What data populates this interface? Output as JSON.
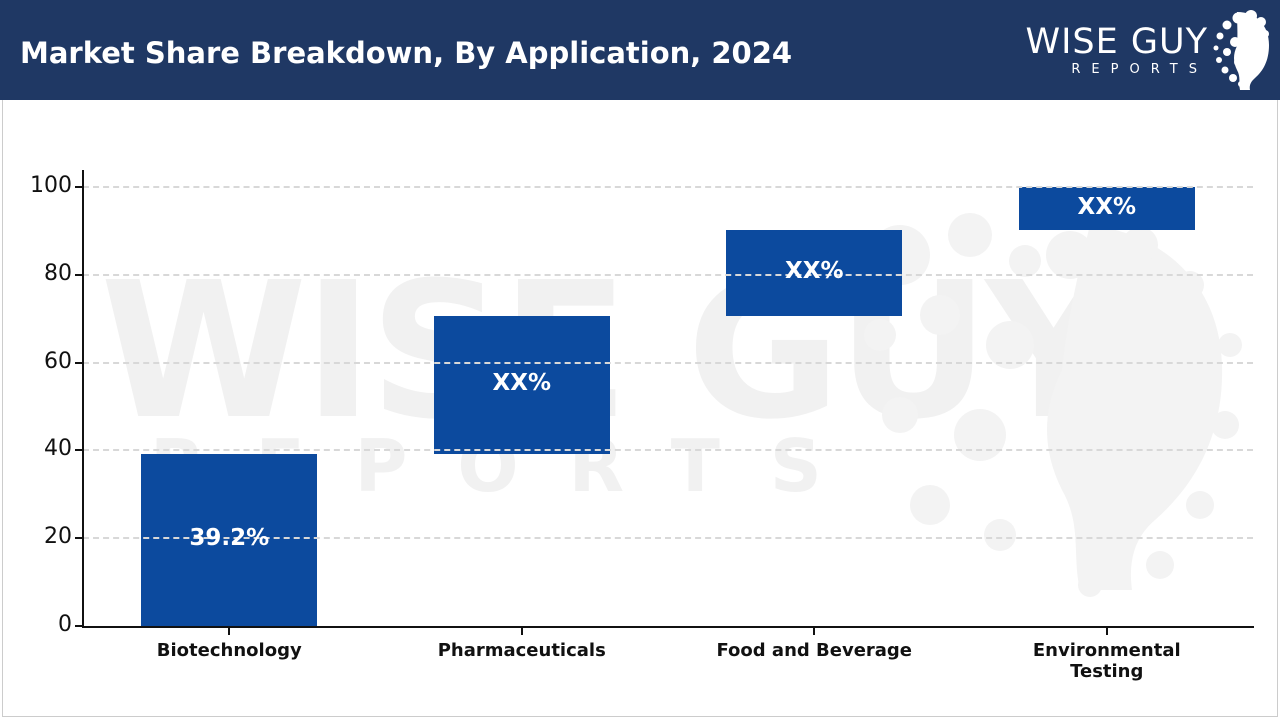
{
  "header": {
    "title": "Market Share Breakdown, By Application, 2024",
    "logo": {
      "line1": "WISE GUY",
      "line2": "REPORTS"
    }
  },
  "watermark": {
    "line1": "WISE GUY",
    "line2": "REPORTS"
  },
  "colors": {
    "header_bg": "#1f3864",
    "bar": "#0c4a9e",
    "grid": "#d8d8d8",
    "axis": "#111111",
    "watermark": "#f1f1f1",
    "panel_border": "#cccccc"
  },
  "chart_data": {
    "type": "bar",
    "subtype": "waterfall",
    "title": "Market Share Breakdown, By Application, 2024",
    "categories": [
      "Biotechnology",
      "Pharmaceuticals",
      "Food and Beverage",
      "Environmental Testing"
    ],
    "segments": [
      {
        "category": "Biotechnology",
        "start": 0,
        "end": 39.2,
        "label": "39.2%"
      },
      {
        "category": "Pharmaceuticals",
        "start": 39.2,
        "end": 70.6,
        "label": "XX%"
      },
      {
        "category": "Food and Beverage",
        "start": 70.6,
        "end": 90.2,
        "label": "XX%"
      },
      {
        "category": "Environmental Testing",
        "start": 90.2,
        "end": 100,
        "label": "XX%"
      }
    ],
    "yticks": [
      0,
      20,
      40,
      60,
      80,
      100
    ],
    "ylim": [
      0,
      103.9
    ],
    "xlabel": "",
    "ylabel": "",
    "grid": true,
    "grid_style": "dashed",
    "legend": false,
    "bar_color": "#0c4a9e",
    "label_color": "#ffffff"
  }
}
